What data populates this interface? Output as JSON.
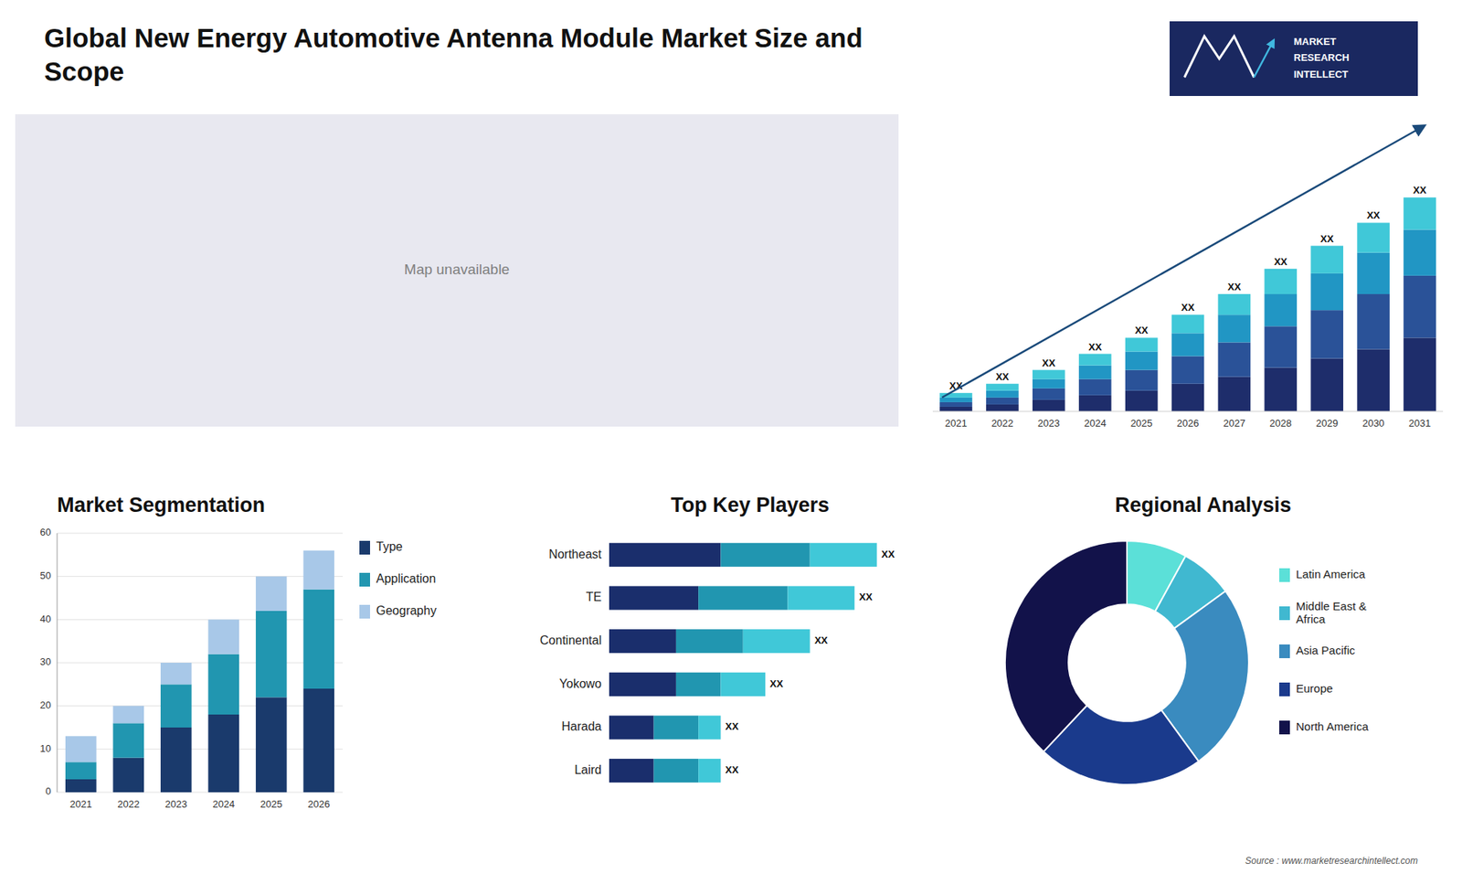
{
  "chart_data": [
    {
      "type": "bar",
      "title": "Global New Energy Automotive Antenna Module Market Size and\nScope",
      "stacked": true,
      "categories": [
        "2021",
        "2022",
        "2023",
        "2024",
        "2025",
        "2026",
        "2027",
        "2028",
        "2029",
        "2030",
        "2031"
      ],
      "series": [
        {
          "color": "#1e2d6b",
          "values": [
            2,
            3,
            5,
            7,
            9,
            12,
            15,
            19,
            23,
            27,
            32
          ]
        },
        {
          "color": "#2a5298",
          "values": [
            2,
            3,
            5,
            7,
            9,
            12,
            15,
            18,
            21,
            24,
            27
          ]
        },
        {
          "color": "#2196c4",
          "values": [
            2,
            3,
            4,
            6,
            8,
            10,
            12,
            14,
            16,
            18,
            20
          ]
        },
        {
          "color": "#40c8d8",
          "values": [
            2,
            3,
            4,
            5,
            6,
            8,
            9,
            11,
            12,
            13,
            14
          ]
        }
      ],
      "annotations": [
        "XX",
        "XX",
        "XX",
        "XX",
        "XX",
        "XX",
        "XX",
        "XX",
        "XX",
        "XX",
        "XX"
      ],
      "ylim": [
        0,
        120.9
      ],
      "tick_labels": "x",
      "grid": false
    },
    {
      "type": "bar",
      "title": "Market Segmentation",
      "stacked": true,
      "categories": [
        "2021",
        "2022",
        "2023",
        "2024",
        "2025",
        "2026"
      ],
      "series": [
        {
          "name": "Type",
          "color": "#1a3a6c",
          "values": [
            3,
            8,
            15,
            18,
            22,
            24
          ]
        },
        {
          "name": "Application",
          "color": "#2196b0",
          "values": [
            4,
            8,
            10,
            14,
            20,
            23
          ]
        },
        {
          "name": "Geography",
          "color": "#a8c8e8",
          "values": [
            6,
            4,
            5,
            8,
            8,
            9
          ]
        }
      ],
      "ylim": [
        0,
        60
      ],
      "yticks": [
        0,
        10,
        20,
        30,
        40,
        50,
        60
      ],
      "grid": true,
      "legend": "right"
    },
    {
      "type": "bar",
      "title": "Top Key Players",
      "stacked": true,
      "orientation": "horizontal",
      "categories": [
        "Northeast",
        "TE",
        "Continental",
        "Yokowo",
        "Harada",
        "Laird"
      ],
      "series": [
        {
          "color": "#1a2e6c",
          "values": [
            5,
            4,
            3,
            3,
            2,
            2
          ]
        },
        {
          "color": "#2196b0",
          "values": [
            4,
            4,
            3,
            2,
            2,
            2
          ]
        },
        {
          "color": "#40c8d8",
          "values": [
            3,
            3,
            3,
            2,
            1,
            1
          ]
        }
      ],
      "annotations": [
        "XX",
        "XX",
        "XX",
        "XX",
        "XX",
        "XX"
      ],
      "xlim": [
        0,
        15.36
      ],
      "tick_labels": "y",
      "grid": false
    },
    {
      "type": "pie",
      "title": "Regional Analysis",
      "categories": [
        "Latin America",
        "Middle East &\nAfrica",
        "Asia Pacific",
        "Europe",
        "North America"
      ],
      "values": [
        8,
        7,
        25,
        22,
        38
      ],
      "colors": [
        "#5be0d8",
        "#40b8d0",
        "#3a8bbf",
        "#1a3a8c",
        "#12124a"
      ],
      "legend": "right"
    },
    {
      "type": "text",
      "annotations": [
        "MARKET",
        "RESEARCH",
        "INTELLECT",
        "Map unavailable",
        "Source : www.marketresearchintellect.com"
      ]
    }
  ]
}
